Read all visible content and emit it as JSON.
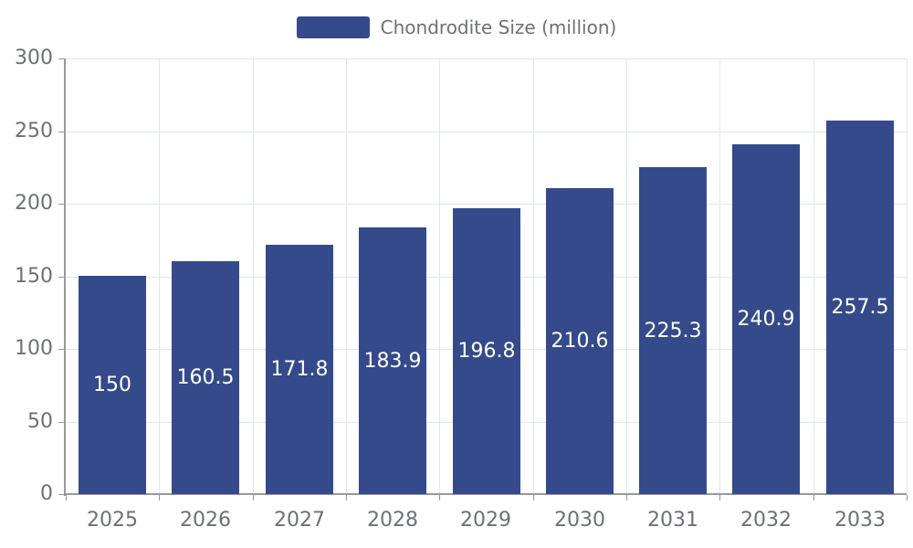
{
  "legend": {
    "label": "Chondrodite Size (million)"
  },
  "colors": {
    "bar": "#344a8a",
    "bar_label": "#ffffff",
    "axis_text": "#6e7079",
    "axis_line": "#999999",
    "grid_line": "#e0e6f1",
    "background": "#ffffff"
  },
  "chart_data": {
    "type": "bar",
    "title": "",
    "legend_entries": [
      "Chondrodite Size (million)"
    ],
    "legend_position": "top-center",
    "categories": [
      "2025",
      "2026",
      "2027",
      "2028",
      "2029",
      "2030",
      "2031",
      "2032",
      "2033"
    ],
    "series": [
      {
        "name": "Chondrodite Size (million)",
        "values": [
          150,
          160.5,
          171.8,
          183.9,
          196.8,
          210.6,
          225.3,
          240.9,
          257.5
        ],
        "labels": [
          "150",
          "160.5",
          "171.8",
          "183.9",
          "196.8",
          "210.6",
          "225.3",
          "240.9",
          "257.5"
        ],
        "color": "#344a8a"
      }
    ],
    "xlabel": "",
    "ylabel": "",
    "ylim": [
      0,
      300
    ],
    "yticks": [
      0,
      50,
      100,
      150,
      200,
      250,
      300
    ],
    "grid": true,
    "value_label_position": "inside-center",
    "value_label_color": "#ffffff"
  }
}
